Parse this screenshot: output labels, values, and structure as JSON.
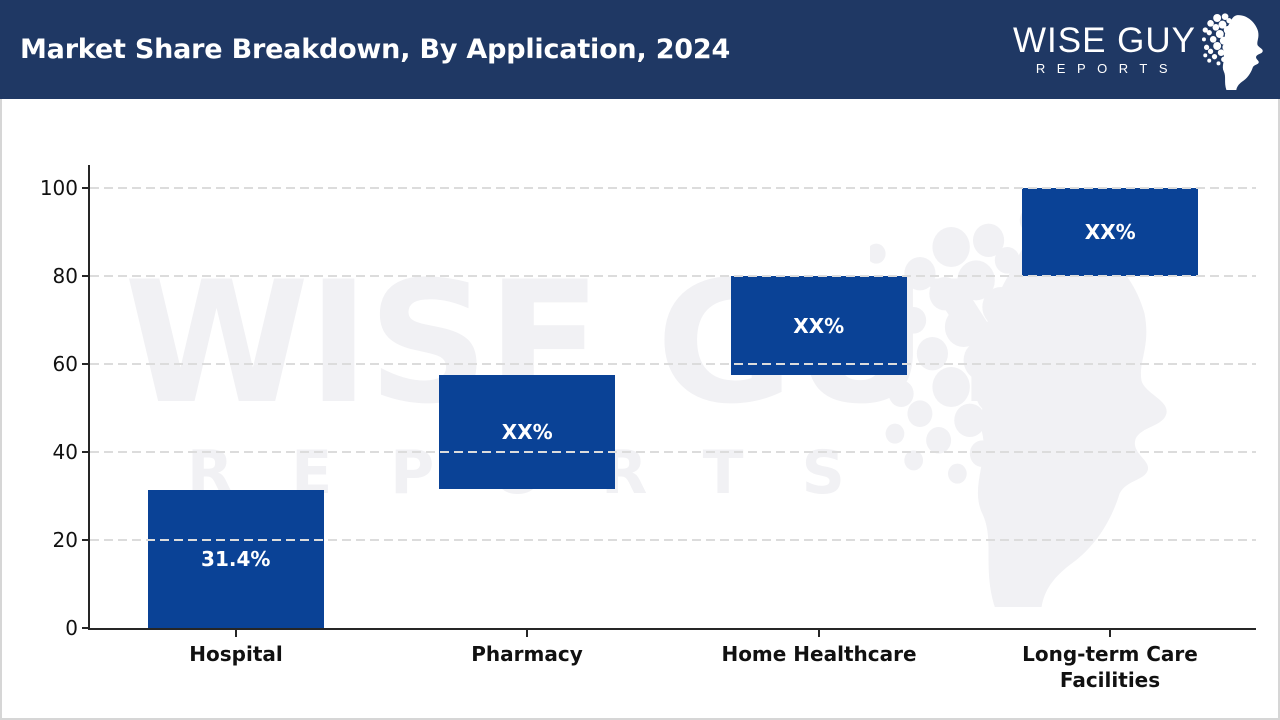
{
  "header": {
    "title": "Market Share Breakdown, By Application, 2024",
    "brand": {
      "name": "WISE GUY",
      "subtitle": "REPORTS"
    }
  },
  "watermark": {
    "line1": "WISE GUY",
    "line2": "REPORTS"
  },
  "chart_data": {
    "type": "bar",
    "subtype": "waterfall",
    "title": "Market Share Breakdown, By Application, 2024",
    "categories": [
      "Hospital",
      "Pharmacy",
      "Home Healthcare",
      "Long-term Care Facilities"
    ],
    "segments": [
      {
        "category": "Hospital",
        "base": 0,
        "top": 31.4,
        "label": "31.4%"
      },
      {
        "category": "Pharmacy",
        "base": 31.4,
        "top": 57.4,
        "label": "XX%"
      },
      {
        "category": "Home Healthcare",
        "base": 57.4,
        "top": 80,
        "label": "XX%"
      },
      {
        "category": "Long-term Care Facilities",
        "base": 80,
        "top": 100,
        "label": "XX%"
      }
    ],
    "xlabel": "",
    "ylabel": "",
    "ylim": [
      0,
      105
    ],
    "yticks": [
      0,
      20,
      40,
      60,
      80,
      100
    ],
    "grid": true,
    "gridline_style": "dashed",
    "legend": null,
    "colors": {
      "bar": "#0a4296",
      "bar_label": "#ffffff",
      "grid": "#dcdcdc",
      "axis": "#262626",
      "tick_label": "#111111",
      "header_bg": "#1f3864",
      "header_text": "#ffffff",
      "watermark": "#f1f1f4"
    }
  }
}
